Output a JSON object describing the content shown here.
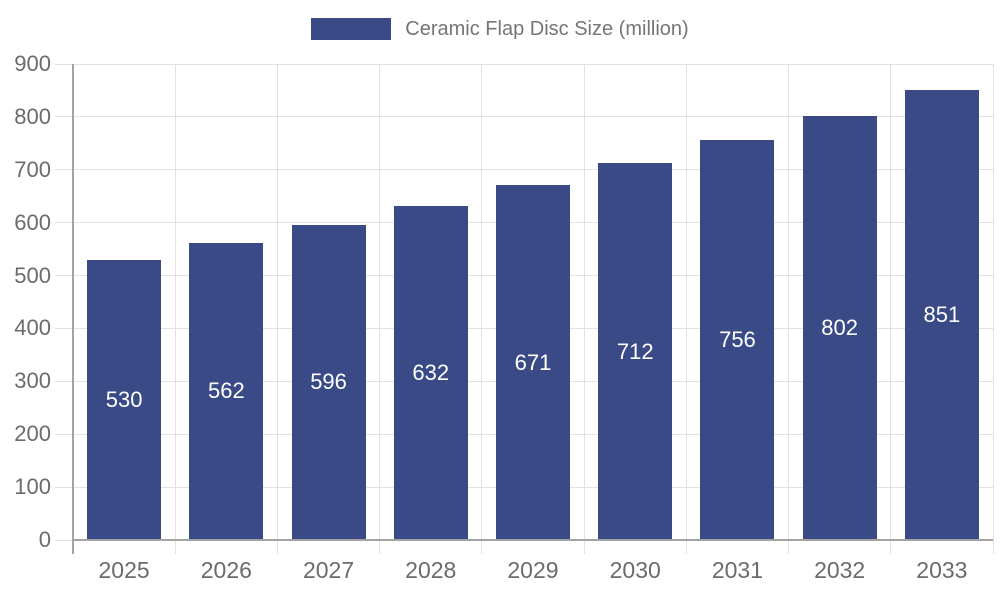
{
  "legend": {
    "label": "Ceramic Flap Disc Size (million)"
  },
  "colors": {
    "bar": "#394a87",
    "grid": "#e2e2e2",
    "axis": "#a3a3a3",
    "tick_text": "#6b6b6b",
    "legend_text": "#757575",
    "value_text": "#ffffff"
  },
  "chart_data": {
    "type": "bar",
    "title": "Ceramic Flap Disc Size (million)",
    "categories": [
      "2025",
      "2026",
      "2027",
      "2028",
      "2029",
      "2030",
      "2031",
      "2032",
      "2033"
    ],
    "values": [
      530,
      562,
      596,
      632,
      671,
      712,
      756,
      802,
      851
    ],
    "xlabel": "",
    "ylabel": "",
    "ylim": [
      0,
      900
    ],
    "ytick_step": 100,
    "grid": true,
    "legend_position": "top",
    "value_labels": "inside-center"
  }
}
